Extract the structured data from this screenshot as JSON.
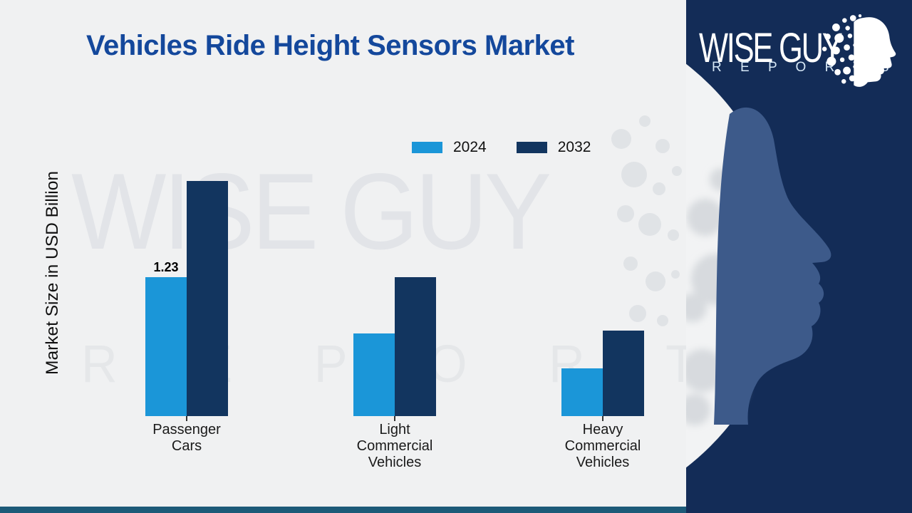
{
  "header": {
    "title": "Vehicles Ride Height Sensors Market"
  },
  "colors": {
    "background": "#f0f1f2",
    "title": "#14489c",
    "bar_2024": "#1b96d8",
    "bar_2032": "#12355f",
    "brand_panel": "#132c57",
    "brand_face_silhouette": "#3d5a8a",
    "brand_circle": "#f2f3f4",
    "bottom_strip": "#1d5a78",
    "watermark": "#d8dbe0"
  },
  "brand": {
    "logo_primary": "WISE GUY",
    "logo_secondary": "R E P O R T S",
    "face_icon": "face-profile-icon"
  },
  "watermark": {
    "primary": "WISE GUY",
    "secondary": "R E P O R T S"
  },
  "chart_data": {
    "type": "bar",
    "title": "Vehicles Ride Height Sensors Market",
    "xlabel": "",
    "ylabel": "Market Size in USD Billion",
    "categories": [
      "Passenger Cars",
      "Light Commercial Vehicles",
      "Heavy Commercial Vehicles"
    ],
    "series": [
      {
        "name": "2024",
        "color": "#1b96d8",
        "values": [
          1.23,
          0.73,
          0.42
        ]
      },
      {
        "name": "2032",
        "color": "#12355f",
        "values": [
          2.08,
          1.23,
          0.76
        ]
      }
    ],
    "data_labels": {
      "2024": [
        "1.23",
        null,
        null
      ],
      "2032": [
        null,
        null,
        null
      ]
    },
    "legend_position": "top",
    "grid": false,
    "ylim": [
      0,
      2.3
    ],
    "yaxis_visible": false
  }
}
